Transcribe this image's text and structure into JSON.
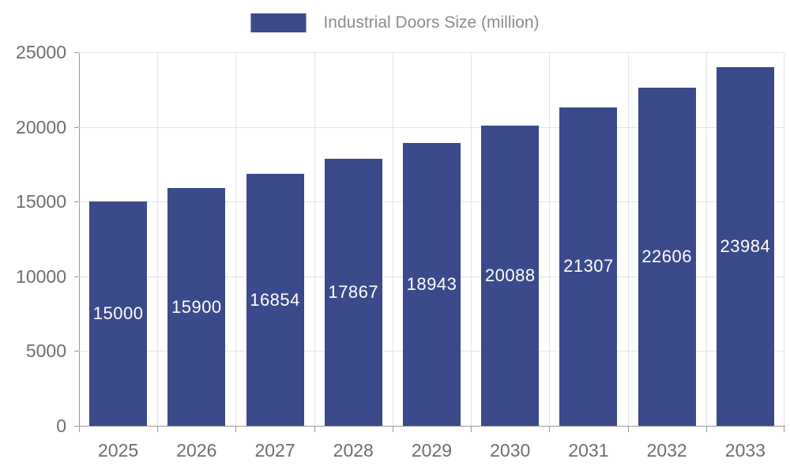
{
  "legend": {
    "label": "Industrial Doors Size (million)"
  },
  "chart_data": {
    "type": "bar",
    "title": "",
    "xlabel": "",
    "ylabel": "",
    "series_name": "Industrial Doors Size (million)",
    "categories": [
      "2025",
      "2026",
      "2027",
      "2028",
      "2029",
      "2030",
      "2031",
      "2032",
      "2033"
    ],
    "values": [
      15000,
      15900,
      16854,
      17867,
      18943,
      20088,
      21307,
      22606,
      23984
    ],
    "ylim": [
      0,
      25000
    ],
    "y_ticks": [
      0,
      5000,
      10000,
      15000,
      20000,
      25000
    ],
    "grid": true,
    "legend_position": "top-center",
    "bar_label_position": "inside-center"
  },
  "colors": {
    "bar": "#3A4A8A",
    "bar_label": "#FFFFFF",
    "axis_line": "#9A9A9A",
    "grid_line": "#E4E4EA",
    "axis_label": "#6E6E6E",
    "legend_text": "#8C8C8C",
    "background": "#FFFFFF"
  }
}
